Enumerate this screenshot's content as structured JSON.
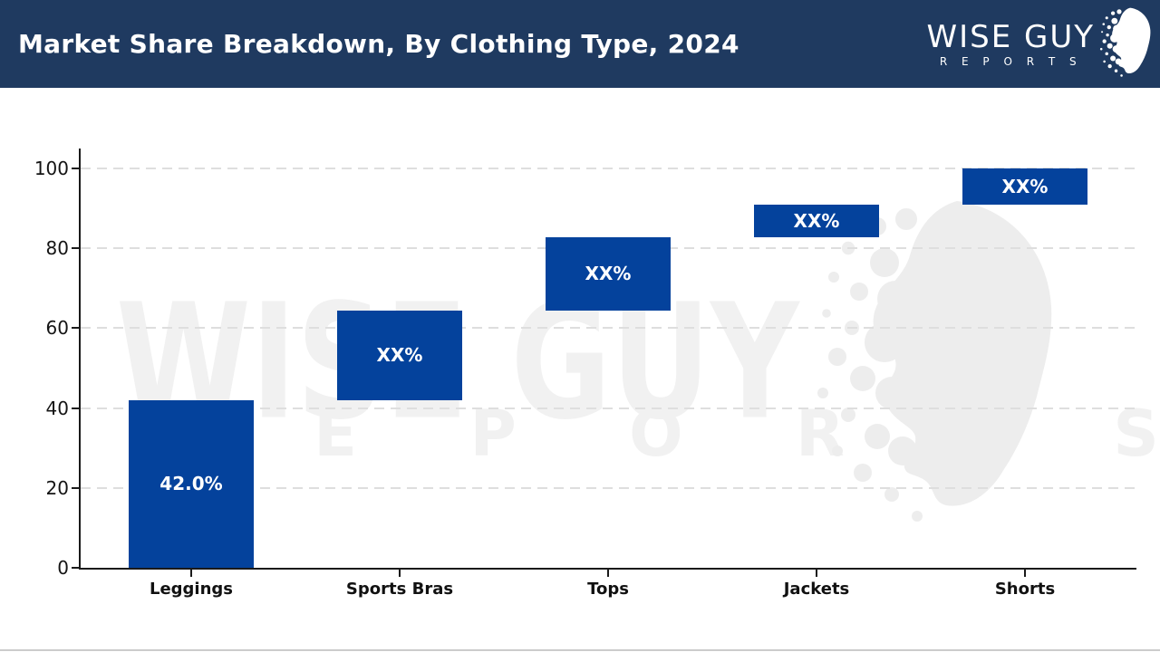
{
  "header": {
    "title": "Market Share Breakdown, By Clothing Type, 2024",
    "logo": {
      "line1": "WISE GUY",
      "line2": "R E P O R T S"
    }
  },
  "watermark": {
    "line1": "WISE GUY",
    "line2": "R E P O R T S"
  },
  "colors": {
    "header_bg": "#1f3a60",
    "title_text": "#ffffff",
    "bar": "#04429c",
    "bar_label_text": "#ffffff",
    "grid": "#dedede",
    "axis": "#1a1a1a",
    "watermark": "#f1f1f1",
    "bottom_rule": "#cccccc"
  },
  "chart_data": {
    "type": "bar",
    "subtype": "waterfall",
    "title": "Market Share Breakdown, By Clothing Type, 2024",
    "categories": [
      "Leggings",
      "Sports Bras",
      "Tops",
      "Jackets",
      "Shorts"
    ],
    "segments": [
      {
        "category": "Leggings",
        "start": 0,
        "end": 42,
        "label": "42.0%"
      },
      {
        "category": "Sports Bras",
        "start": 42,
        "end": 64.5,
        "label": "XX%"
      },
      {
        "category": "Tops",
        "start": 64.5,
        "end": 82.7,
        "label": "XX%"
      },
      {
        "category": "Jackets",
        "start": 82.7,
        "end": 91,
        "label": "XX%"
      },
      {
        "category": "Shorts",
        "start": 91,
        "end": 100,
        "label": "XX%"
      }
    ],
    "y_ticks": [
      0,
      20,
      40,
      60,
      80,
      100
    ],
    "ylim": [
      0,
      105
    ],
    "xlabel": "",
    "ylabel": "",
    "grid": "horizontal-dashed",
    "legend": null
  }
}
